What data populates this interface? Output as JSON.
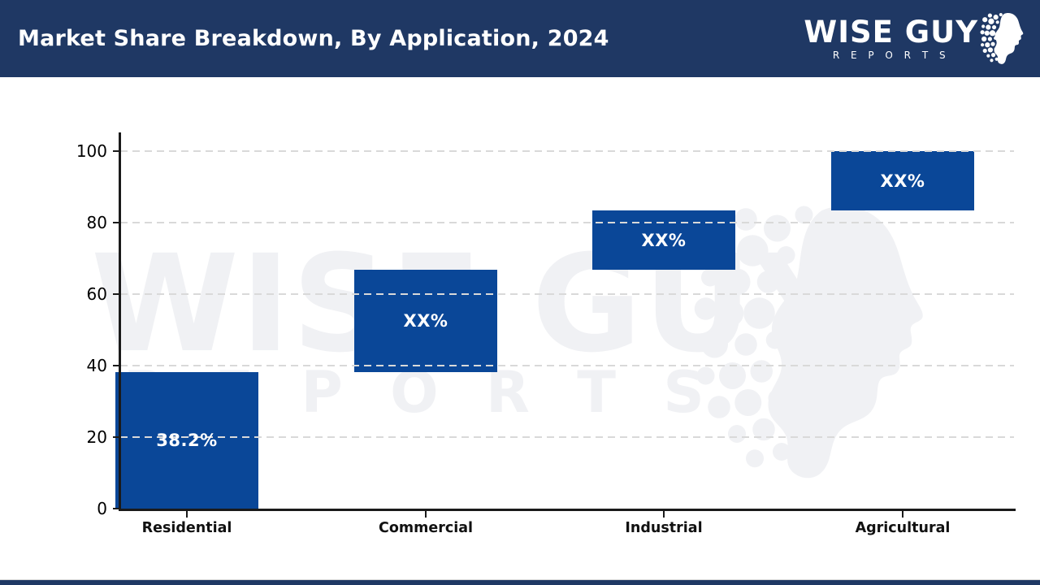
{
  "header": {
    "title": "Market Share Breakdown, By Application, 2024",
    "logo_line1": "WISE GUY",
    "logo_line2": "R E P O R T S"
  },
  "watermark": {
    "line1": "WISE GUY",
    "line2": "R E P O R T S"
  },
  "chart_data": {
    "type": "bar",
    "subtype": "waterfall",
    "title": "Market Share Breakdown, By Application, 2024",
    "categories": [
      "Residential",
      "Commercial",
      "Industrial",
      "Agricultural"
    ],
    "bars": [
      {
        "category": "Residential",
        "label": "38.2%",
        "from": 0,
        "to": 38.2,
        "segment_value": 38.2
      },
      {
        "category": "Commercial",
        "label": "XX%",
        "from": 38.2,
        "to": 66.8,
        "segment_value": 28.6
      },
      {
        "category": "Industrial",
        "label": "XX%",
        "from": 66.8,
        "to": 83.4,
        "segment_value": 16.6
      },
      {
        "category": "Agricultural",
        "label": "XX%",
        "from": 83.4,
        "to": 100,
        "segment_value": 16.6
      }
    ],
    "yticks": [
      0,
      20,
      40,
      60,
      80,
      100
    ],
    "ylim": [
      0,
      105
    ],
    "xlabel": "",
    "ylabel": "",
    "legend": "none",
    "grid": "horizontal-dashed-over-bars",
    "colors": {
      "bar": "#0A4798",
      "header_bg": "#1F3864",
      "gridline": "#d9d9d9",
      "axis": "#1a1a1a",
      "watermark": "#f0f1f4",
      "bar_label_text": "#ffffff"
    }
  }
}
